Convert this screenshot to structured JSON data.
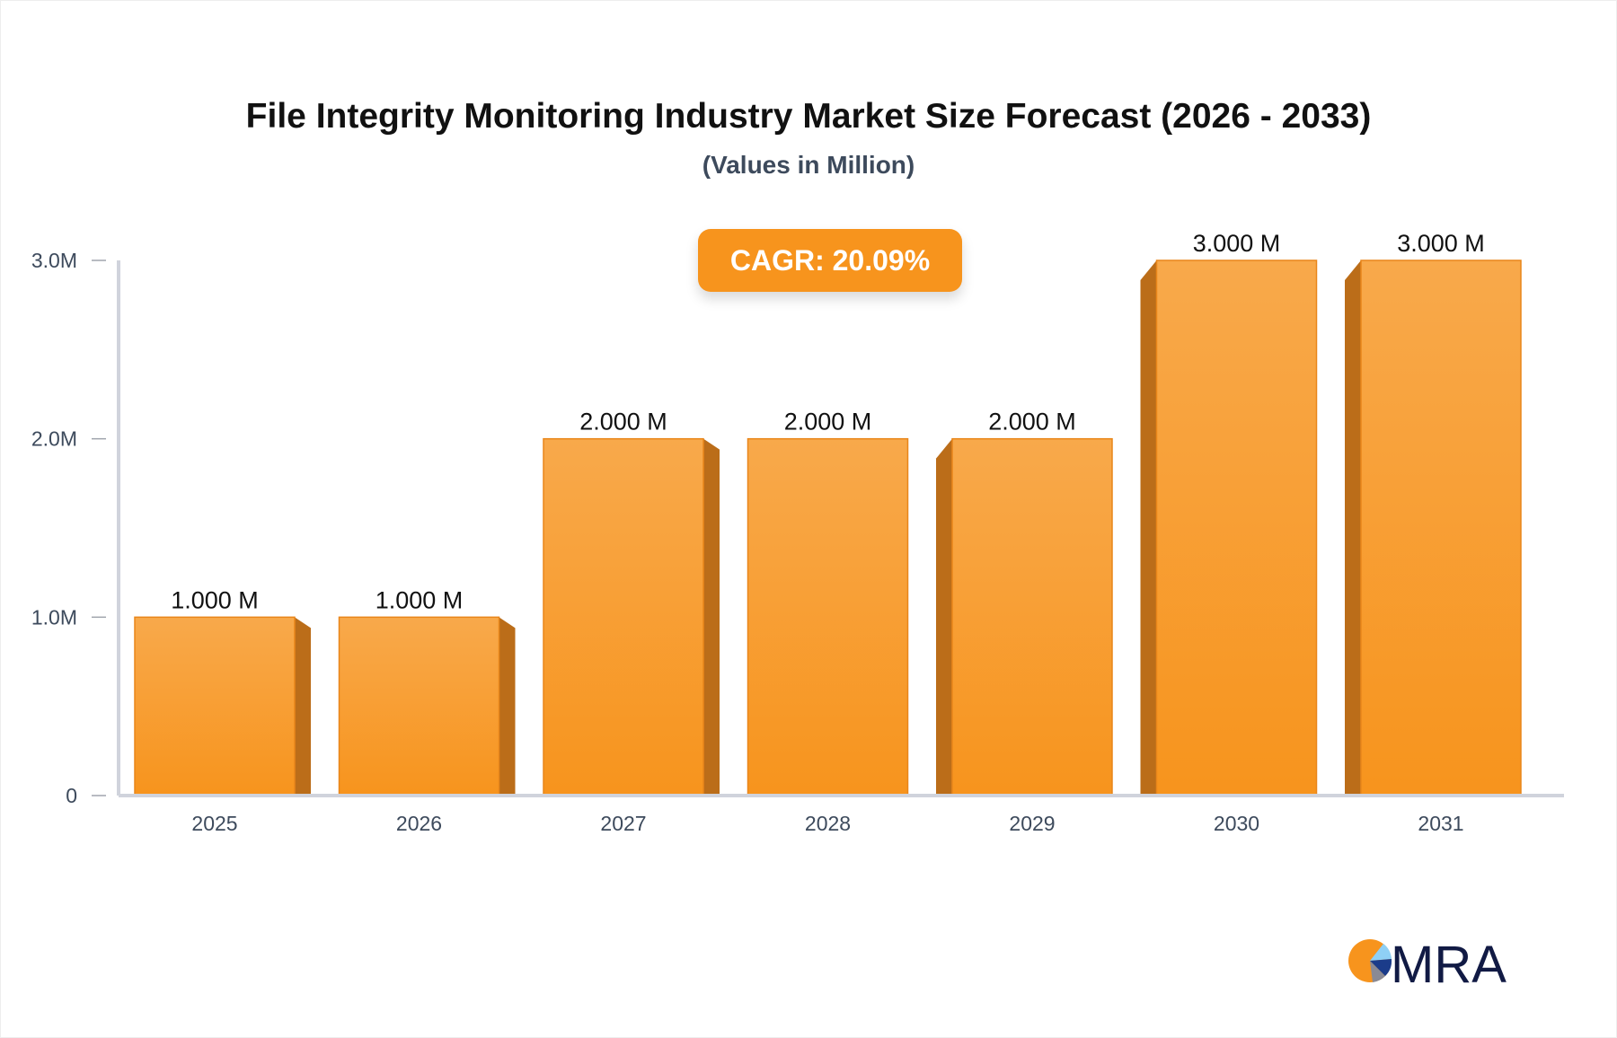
{
  "chart_data": {
    "type": "bar",
    "title": "File Integrity Monitoring Industry Market Size Forecast (2026 - 2033)",
    "subtitle": "(Values in Million)",
    "categories": [
      "2025",
      "2026",
      "2027",
      "2028",
      "2029",
      "2030",
      "2031"
    ],
    "values": [
      1.0,
      1.0,
      2.0,
      2.0,
      2.0,
      3.0,
      3.0
    ],
    "data_labels": [
      "1.000 M",
      "1.000 M",
      "2.000 M",
      "2.000 M",
      "2.000 M",
      "3.000 M",
      "3.000 M"
    ],
    "yticks": [
      0,
      1.0,
      2.0,
      3.0
    ],
    "ytick_labels": [
      "0",
      "1.0M",
      "2.0M",
      "3.0M"
    ],
    "ylim": [
      0,
      3.0
    ],
    "xlabel": "",
    "ylabel": "",
    "grid": false,
    "annotation": "CAGR: 20.09%",
    "colors": {
      "bar": "#f7941d",
      "bar_light": "#f8a94b",
      "bar_side": "#bb6d19",
      "axis": "#d0d3dc",
      "badge": "#f7941d"
    }
  },
  "logo": {
    "text": "MRA"
  }
}
